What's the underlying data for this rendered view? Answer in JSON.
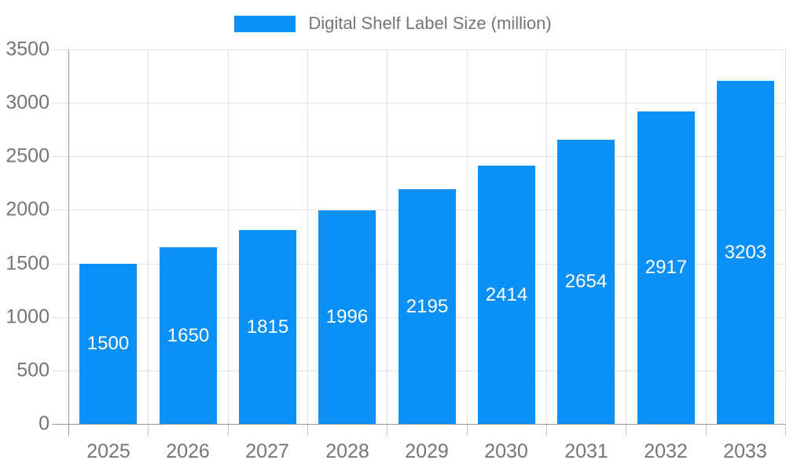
{
  "legend": {
    "label": "Digital Shelf Label Size (million)"
  },
  "chart_data": {
    "type": "bar",
    "title": "Digital Shelf Label Size (million)",
    "series_name": "Digital Shelf Label Size (million)",
    "categories": [
      "2025",
      "2026",
      "2027",
      "2028",
      "2029",
      "2030",
      "2031",
      "2032",
      "2033"
    ],
    "values": [
      1500,
      1650,
      1815,
      1996,
      2195,
      2414,
      2654,
      2917,
      3203
    ],
    "xlabel": "",
    "ylabel": "",
    "ylim": [
      0,
      3500
    ],
    "ytick_step": 500,
    "yticks": [
      0,
      500,
      1000,
      1500,
      2000,
      2500,
      3000,
      3500
    ],
    "grid": true,
    "legend_position": "top-center",
    "bar_color": "#0a90f7",
    "bar_label_color": "#ffffff",
    "axis_text_color": "#757575",
    "gridline_color": "#e0e0e0",
    "axis_line_color": "#999999"
  }
}
